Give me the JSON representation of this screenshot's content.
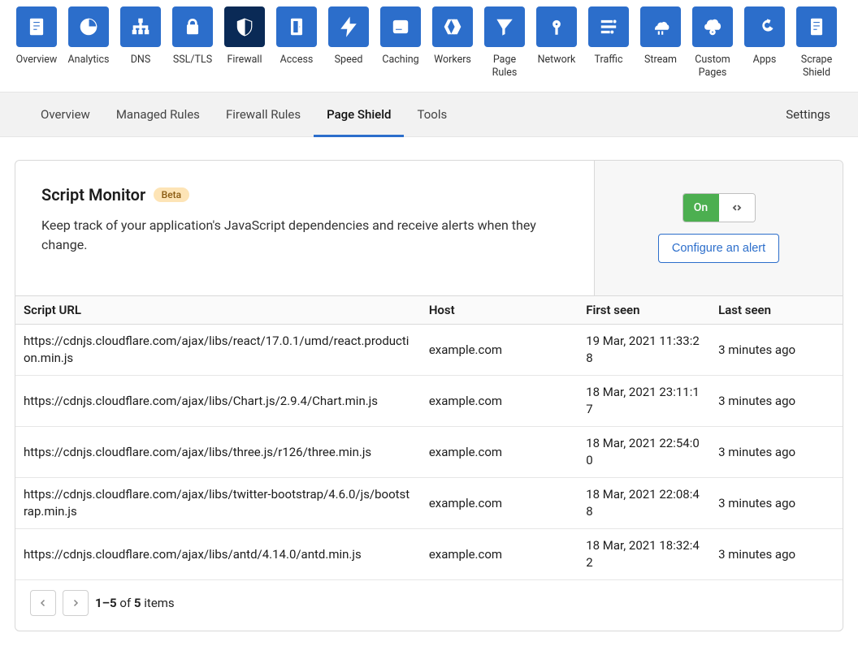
{
  "top_nav": {
    "items": [
      {
        "key": "overview",
        "label": "Overview"
      },
      {
        "key": "analytics",
        "label": "Analytics"
      },
      {
        "key": "dns",
        "label": "DNS"
      },
      {
        "key": "ssl",
        "label": "SSL/TLS"
      },
      {
        "key": "firewall",
        "label": "Firewall",
        "active": true
      },
      {
        "key": "access",
        "label": "Access"
      },
      {
        "key": "speed",
        "label": "Speed"
      },
      {
        "key": "caching",
        "label": "Caching"
      },
      {
        "key": "workers",
        "label": "Workers"
      },
      {
        "key": "pagerules",
        "label": "Page Rules"
      },
      {
        "key": "network",
        "label": "Network"
      },
      {
        "key": "traffic",
        "label": "Traffic"
      },
      {
        "key": "stream",
        "label": "Stream"
      },
      {
        "key": "custompages",
        "label": "Custom Pages"
      },
      {
        "key": "apps",
        "label": "Apps"
      },
      {
        "key": "scrapeshield",
        "label": "Scrape Shield"
      }
    ]
  },
  "sub_tabs": {
    "items": [
      {
        "label": "Overview"
      },
      {
        "label": "Managed Rules"
      },
      {
        "label": "Firewall Rules"
      },
      {
        "label": "Page Shield",
        "active": true
      },
      {
        "label": "Tools"
      }
    ],
    "settings_label": "Settings"
  },
  "panel": {
    "title": "Script Monitor",
    "badge": "Beta",
    "description": "Keep track of your application's JavaScript dependencies and receive alerts when they change.",
    "toggle_on_label": "On",
    "config_button": "Configure an alert"
  },
  "table": {
    "columns": [
      "Script URL",
      "Host",
      "First seen",
      "Last seen"
    ],
    "rows": [
      {
        "url": "https://cdnjs.cloudflare.com/ajax/libs/react/17.0.1/umd/react.production.min.js",
        "host": "example.com",
        "first": "19 Mar, 2021 11:33:28",
        "last": "3 minutes ago"
      },
      {
        "url": "https://cdnjs.cloudflare.com/ajax/libs/Chart.js/2.9.4/Chart.min.js",
        "host": "example.com",
        "first": "18 Mar, 2021 23:11:17",
        "last": "3 minutes ago"
      },
      {
        "url": "https://cdnjs.cloudflare.com/ajax/libs/three.js/r126/three.min.js",
        "host": "example.com",
        "first": "18 Mar, 2021 22:54:00",
        "last": "3 minutes ago"
      },
      {
        "url": "https://cdnjs.cloudflare.com/ajax/libs/twitter-bootstrap/4.6.0/js/bootstrap.min.js",
        "host": "example.com",
        "first": "18 Mar, 2021 22:08:48",
        "last": "3 minutes ago"
      },
      {
        "url": "https://cdnjs.cloudflare.com/ajax/libs/antd/4.14.0/antd.min.js",
        "host": "example.com",
        "first": "18 Mar, 2021 18:32:42",
        "last": "3 minutes ago"
      }
    ]
  },
  "pagination": {
    "range": "1–5",
    "of_word": "of",
    "total": "5",
    "items_word": "items"
  }
}
